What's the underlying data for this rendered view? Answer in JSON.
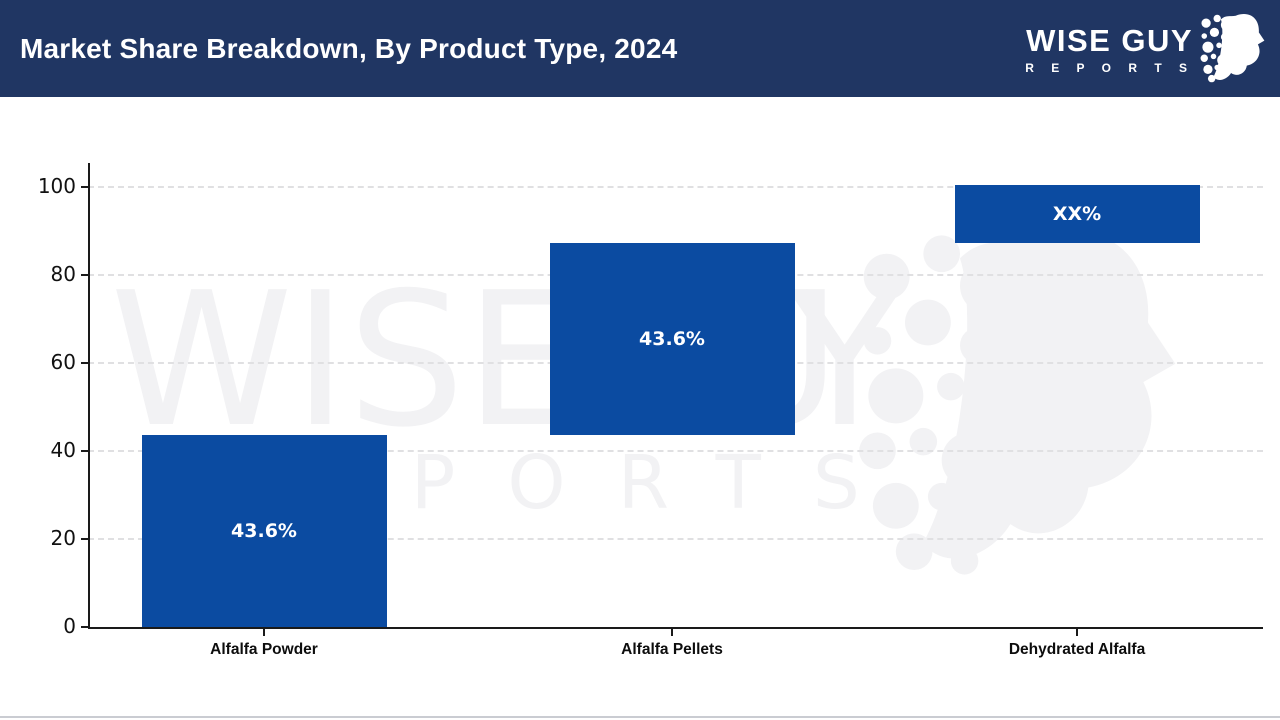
{
  "header": {
    "title": "Market Share Breakdown, By Product Type, 2024",
    "logo": {
      "line1": "WISE GUY",
      "line2": "R E P O R T S"
    }
  },
  "watermark": {
    "word1": "WISE",
    "word2": "GU",
    "word3": "Y",
    "letters_row": "EPORTS"
  },
  "colors": {
    "header_bg": "#203663",
    "bar": "#0b4ba1",
    "grid": "#e0e0e2",
    "watermark": "#f2f2f4",
    "axis": "#1a1a1a",
    "bar_label": "#ffffff"
  },
  "chart_data": {
    "type": "bar",
    "subtype": "stacked-waterfall-percent",
    "title": "Market Share Breakdown, By Product Type, 2024",
    "categories": [
      "Alfalfa Powder",
      "Alfalfa Pellets",
      "Dehydrated Alfalfa"
    ],
    "series": [
      {
        "name": "Alfalfa Powder",
        "start": 0,
        "end": 43.6,
        "label": "43.6%"
      },
      {
        "name": "Alfalfa Pellets",
        "start": 43.6,
        "end": 87.2,
        "label": "43.6%"
      },
      {
        "name": "Dehydrated Alfalfa",
        "start": 87.2,
        "end": 100.4,
        "label": "XX%"
      }
    ],
    "values": [
      "43.6",
      "43.6",
      "XX"
    ],
    "unit": "%",
    "yticks": [
      0,
      20,
      40,
      60,
      80,
      100
    ],
    "ytick_labels": [
      "0",
      "20",
      "40",
      "60",
      "80",
      "100"
    ],
    "ylim": [
      0,
      105
    ],
    "xlabel": "",
    "ylabel": "",
    "grid": "horizontal-dashed",
    "legend": "none"
  }
}
